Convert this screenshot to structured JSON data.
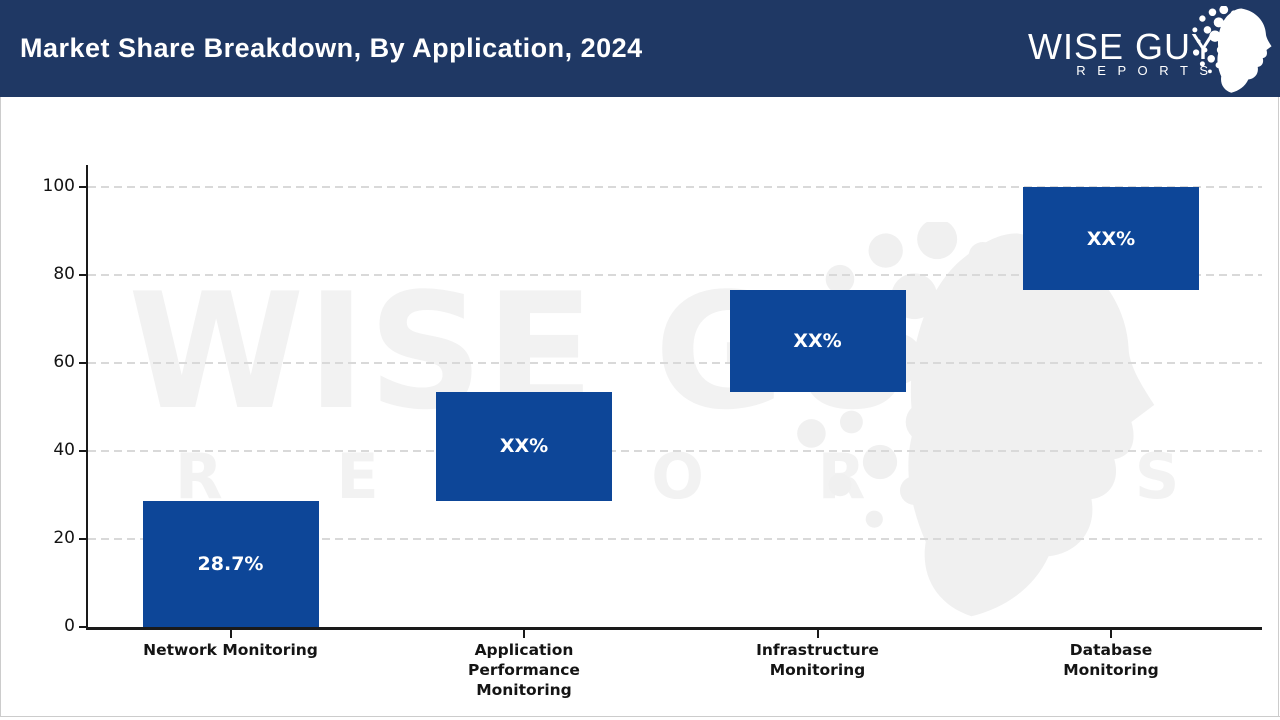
{
  "header": {
    "title": "Market Share Breakdown, By Application, 2024",
    "bg_color": "#1f3864",
    "logo": {
      "line1": "WISE GUY",
      "line2": "R E P O R T S"
    }
  },
  "watermark": {
    "line1": "WISE GUY",
    "line2": "R E P O R T S"
  },
  "chart_data": {
    "type": "bar",
    "subtype": "waterfall (cumulative floating bars)",
    "title": "Market Share Breakdown, By Application, 2024",
    "categories": [
      "Network Monitoring",
      "Application\nPerformance\nMonitoring",
      "Infrastructure\nMonitoring",
      "Database\nMonitoring"
    ],
    "series": [
      {
        "name": "Market share (%)",
        "segments": [
          {
            "start": 0,
            "end": 28.7,
            "label": "28.7%"
          },
          {
            "start": 28.7,
            "end": 53.5,
            "label": "XX%"
          },
          {
            "start": 53.5,
            "end": 76.5,
            "label": "XX%"
          },
          {
            "start": 76.5,
            "end": 100,
            "label": "XX%"
          }
        ]
      }
    ],
    "bar_labels": [
      "28.7%",
      "XX%",
      "XX%",
      "XX%"
    ],
    "xlabel": "",
    "ylabel": "",
    "ylim": [
      0,
      100
    ],
    "yticks": [
      0,
      20,
      40,
      60,
      80,
      100
    ],
    "grid": "horizontal dashed",
    "legend": "none",
    "bar_color": "#0d4698",
    "bar_label_color": "#ffffff",
    "grid_color": "#d9d9d9",
    "axis_color": "#1a1a1a",
    "watermark_color": "#f2f2f2"
  }
}
